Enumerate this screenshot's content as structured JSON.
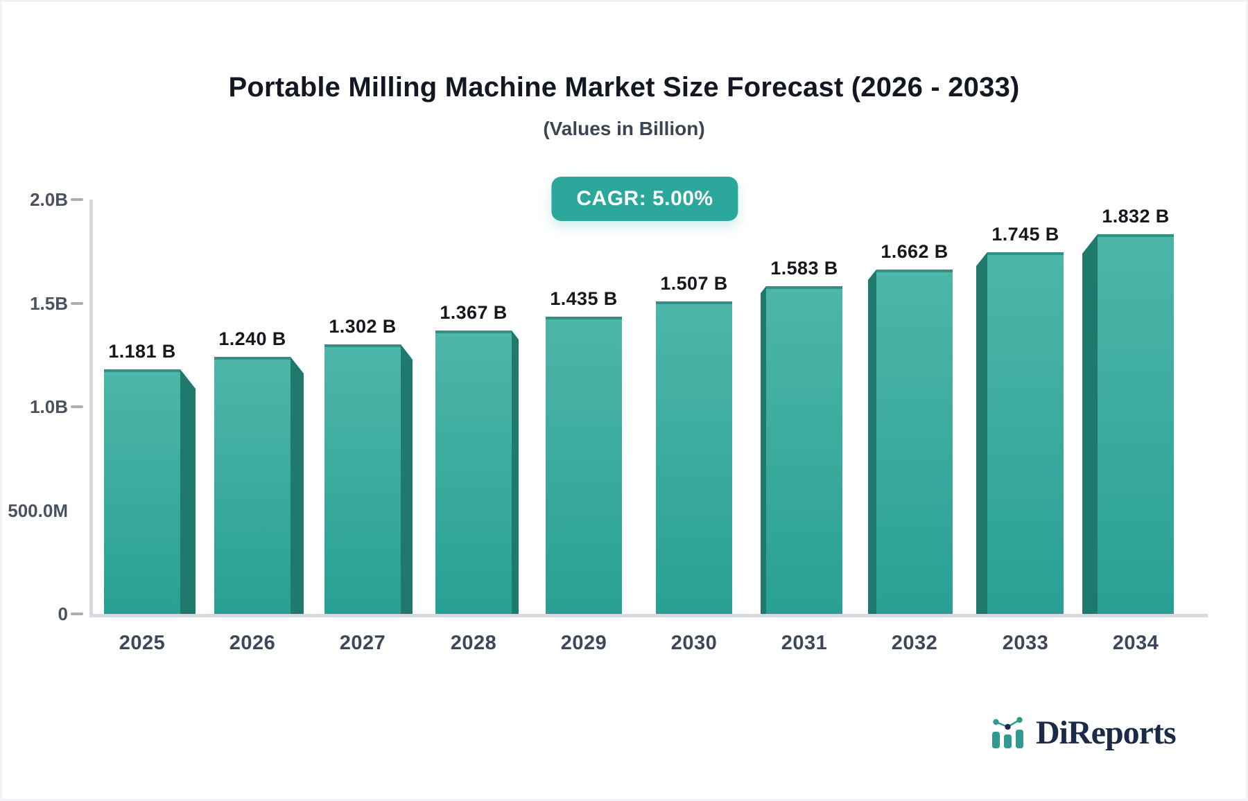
{
  "chart_data": {
    "type": "bar",
    "title": "Portable Milling Machine Market Size Forecast (2026 - 2033)",
    "subtitle": "(Values in Billion)",
    "badge_label": "CAGR: 5.00%",
    "categories": [
      "2025",
      "2026",
      "2027",
      "2028",
      "2029",
      "2030",
      "2031",
      "2032",
      "2033",
      "2034"
    ],
    "values": [
      1.181,
      1.24,
      1.302,
      1.367,
      1.435,
      1.507,
      1.583,
      1.662,
      1.745,
      1.832
    ],
    "value_labels": [
      "1.181 B",
      "1.240 B",
      "1.302 B",
      "1.367 B",
      "1.435 B",
      "1.507 B",
      "1.583 B",
      "1.662 B",
      "1.745 B",
      "1.832 B"
    ],
    "unit": "Billion",
    "ylim": [
      0,
      2.0
    ],
    "yticks": [
      {
        "label": "2.0B",
        "value": 2.0,
        "dash": true
      },
      {
        "label": "1.5B",
        "value": 1.5,
        "dash": true
      },
      {
        "label": "1.0B",
        "value": 1.0,
        "dash": true
      },
      {
        "label": "500.0M",
        "value": 0.5,
        "dash": false
      },
      {
        "label": "0",
        "value": 0.0,
        "dash": true
      }
    ],
    "grid": false,
    "legend": false,
    "bar_style": "3d-beveled"
  },
  "branding": {
    "logo_text": "DiReports"
  },
  "colors": {
    "bar_face_top": "#4DB6A8",
    "bar_face_bottom": "#28A093",
    "bar_side": "#1F7A6D",
    "bar_top_edge": "#2E9184",
    "badge_bg": "#2BA89B",
    "badge_text": "#FFFFFF",
    "axis_line": "#D6DAE0",
    "tick_dash": "#A9AFBA",
    "axis_text": "#49525F",
    "value_text": "#15181D",
    "title_text": "#131722",
    "logo_navy": "#1B2B47",
    "logo_teal": "#2F9A90"
  }
}
